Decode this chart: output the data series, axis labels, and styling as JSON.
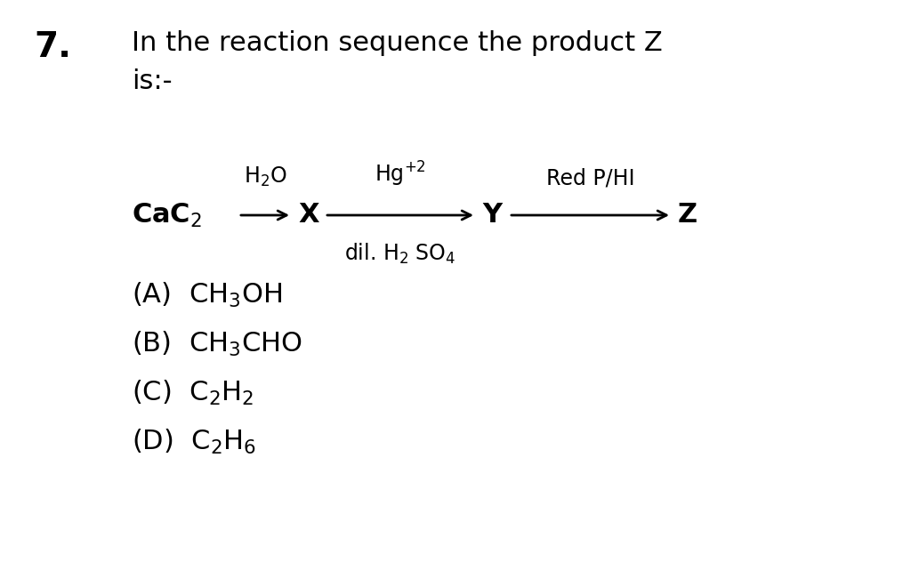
{
  "background_color": "#ffffff",
  "figsize": [
    10.24,
    6.32
  ],
  "dpi": 100,
  "font_color": "#000000",
  "q_num": "7.",
  "q_line1": "In the reaction sequence the product Z",
  "q_line2": "is:-",
  "cac2": "CaC$_2$",
  "above1": "H$_2$O",
  "x_label": "X",
  "above2": "Hg$^{+2}$",
  "below2": "dil. H$_2$ SO$_4$",
  "y_label": "Y",
  "above3": "Red P/HI",
  "z_label": "Z",
  "opt_A": "(A)  CH$_3$OH",
  "opt_B": "(B)  CH$_3$CHO",
  "opt_C": "(C)  C$_2$H$_2$",
  "opt_D": "(D)  C$_2$H$_6$",
  "qnum_fs": 28,
  "qtxt_fs": 22,
  "rxn_fs": 22,
  "rxn_label_fs": 17,
  "opt_fs": 22
}
